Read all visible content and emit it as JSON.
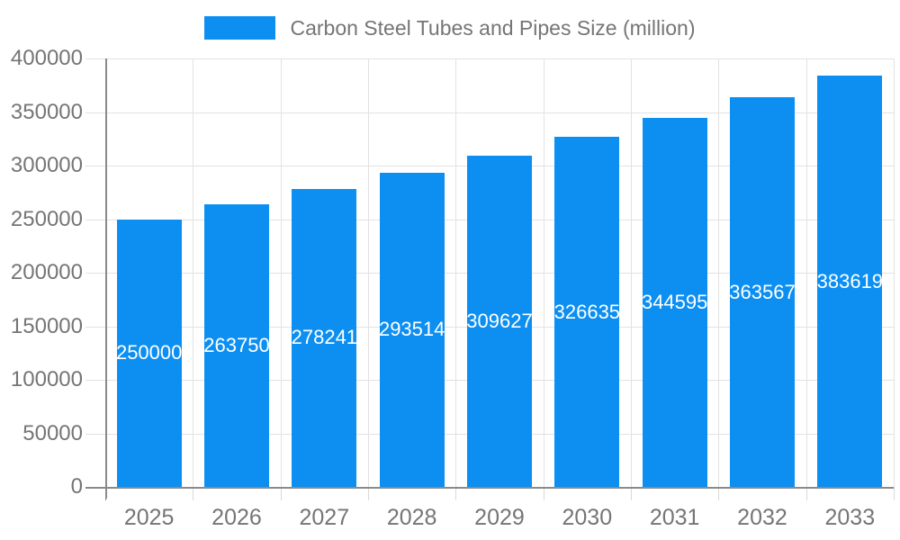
{
  "chart_data": {
    "type": "bar",
    "title": "Carbon Steel Tubes and Pipes Size (million)",
    "categories": [
      "2025",
      "2026",
      "2027",
      "2028",
      "2029",
      "2030",
      "2031",
      "2032",
      "2033"
    ],
    "series": [
      {
        "name": "Carbon Steel Tubes and Pipes Size (million)",
        "values": [
          250000,
          263750,
          278241,
          293514,
          309627,
          326635,
          344595,
          363567,
          383619
        ]
      }
    ],
    "value_labels": [
      "250000",
      "263750",
      "278241",
      "293514",
      "309627",
      "326635",
      "344595",
      "363567",
      "383619"
    ],
    "xlabel": "",
    "ylabel": "",
    "ylim": [
      0,
      400000
    ],
    "ytick_step": 50000,
    "ytick_labels": [
      "0",
      "50000",
      "100000",
      "150000",
      "200000",
      "250000",
      "300000",
      "350000",
      "400000"
    ],
    "grid": true,
    "legend_position": "top",
    "colors": {
      "bar": "#0d8ff2",
      "value_label": "#ffffff",
      "axis_line": "#8a8a8a",
      "grid_line": "#e2e2e2",
      "tick_line": "#d9d9d9",
      "text": "#757575",
      "background": "#ffffff"
    }
  }
}
